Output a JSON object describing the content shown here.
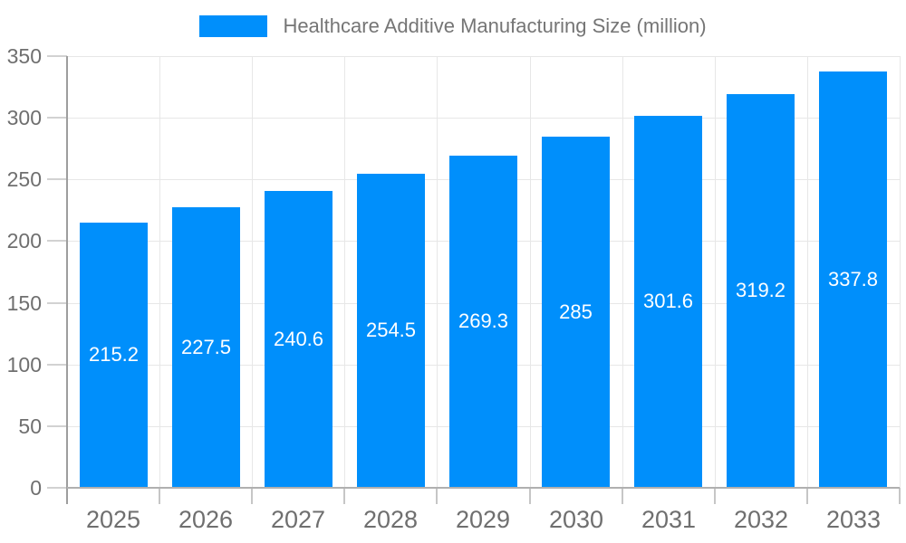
{
  "legend": {
    "label": "Healthcare Additive Manufacturing Size (million)"
  },
  "colors": {
    "bar": "#008FFB",
    "grid": "#e7e7e7",
    "y_axis_line": "#9e9e9e",
    "x_axis_line": "#b0b0b0",
    "tick": "#cdcdcd",
    "axis_text": "#6f6f6f",
    "legend_text": "#757575",
    "bar_label_text": "#ffffff",
    "background": "#ffffff"
  },
  "chart_data": {
    "type": "bar",
    "title": "Healthcare Additive Manufacturing Size (million)",
    "categories": [
      "2025",
      "2026",
      "2027",
      "2028",
      "2029",
      "2030",
      "2031",
      "2032",
      "2033"
    ],
    "series": [
      {
        "name": "Healthcare Additive Manufacturing Size (million)",
        "values": [
          215.2,
          227.5,
          240.6,
          254.5,
          269.3,
          285,
          301.6,
          319.2,
          337.8
        ]
      }
    ],
    "value_labels": [
      "215.2",
      "227.5",
      "240.6",
      "254.5",
      "269.3",
      "285",
      "301.6",
      "319.2",
      "337.8"
    ],
    "xlabel": "",
    "ylabel": "",
    "ylim": [
      0,
      350
    ],
    "ytick_step": 50,
    "ytick_labels": [
      "0",
      "50",
      "100",
      "150",
      "200",
      "250",
      "300",
      "350"
    ],
    "grid": "horizontal-and-vertical",
    "legend_position": "top-center",
    "bar_label_position": "center-inside"
  }
}
